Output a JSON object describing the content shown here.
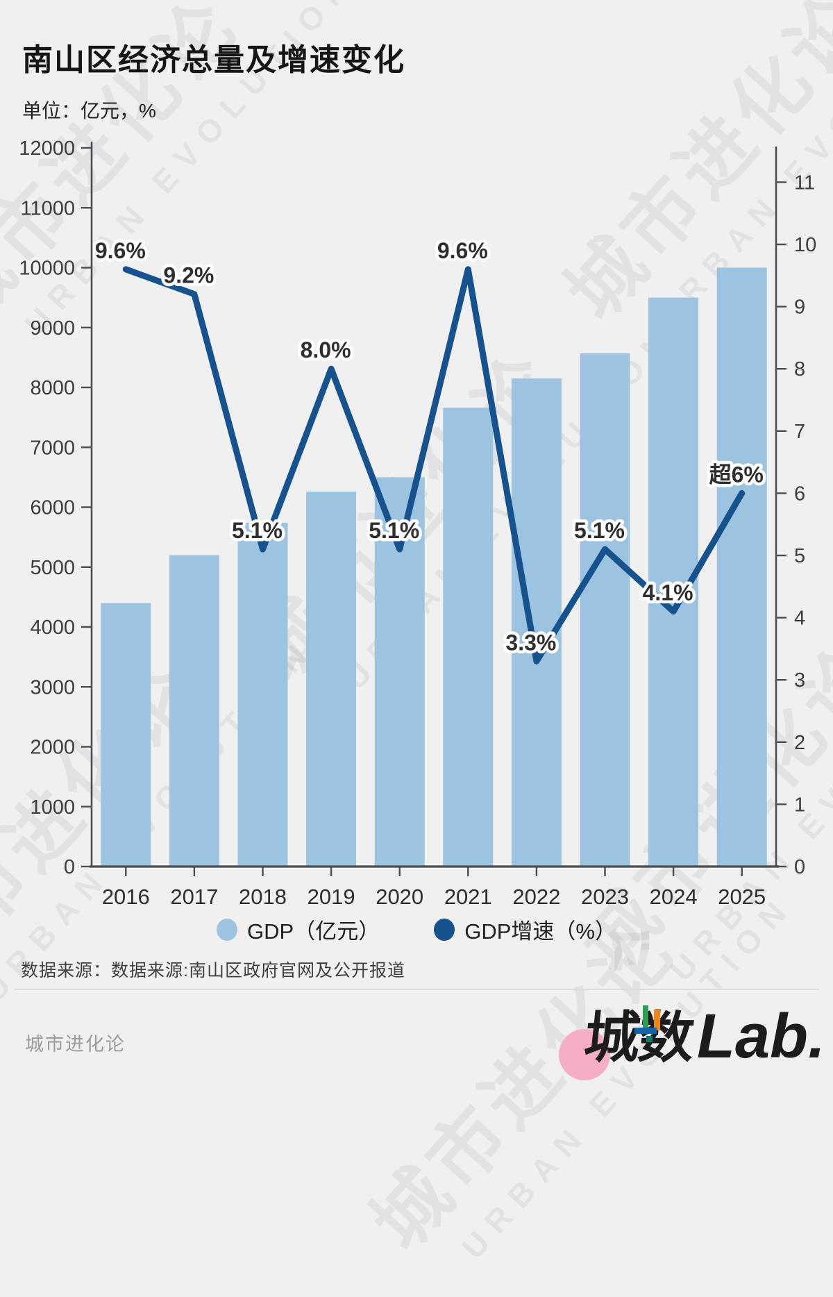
{
  "title": "南山区经济总量及增速变化",
  "subtitle": "单位：亿元，%",
  "watermark": {
    "line1": "城市进化论",
    "line2": "URBAN EVOLUTION"
  },
  "chart_data": {
    "type": "bar+line",
    "categories": [
      "2016",
      "2017",
      "2018",
      "2019",
      "2020",
      "2021",
      "2022",
      "2023",
      "2024",
      "2025"
    ],
    "series": [
      {
        "name": "GDP（亿元）",
        "type": "bar",
        "axis": "left",
        "color": "#9cc4e0",
        "values": [
          4400,
          5200,
          5740,
          6260,
          6500,
          7660,
          8150,
          8570,
          9500,
          10000
        ]
      },
      {
        "name": "GDP增速（%）",
        "type": "line",
        "axis": "right",
        "color": "#15528e",
        "values": [
          9.6,
          9.2,
          5.1,
          8.0,
          5.1,
          9.6,
          3.3,
          5.1,
          4.1,
          6.0
        ],
        "point_labels": [
          "9.6%",
          "9.2%",
          "5.1%",
          "8.0%",
          "5.1%",
          "9.6%",
          "3.3%",
          "5.1%",
          "4.1%",
          "超6%"
        ]
      }
    ],
    "left_axis": {
      "min": 0,
      "max": 12000,
      "step": 1000
    },
    "right_axis": {
      "min": 0,
      "max": 11,
      "step": 1
    },
    "grid": false,
    "legend_position": "bottom"
  },
  "source": "数据来源：数据来源:南山区政府官网及公开报道",
  "footer": {
    "brand": "城市进化论",
    "logo": {
      "char1": "城",
      "char2": "数",
      "latin": "Lab."
    }
  },
  "colors": {
    "background": "#f0f0f1",
    "bar": "#9cc4e0",
    "line": "#15528e",
    "axis": "#4a4d52",
    "tick_text": "#3c3c3c",
    "point_label_text": "#2f2f2f",
    "point_label_halo": "#ffffff",
    "pink": "#f5aec5"
  }
}
